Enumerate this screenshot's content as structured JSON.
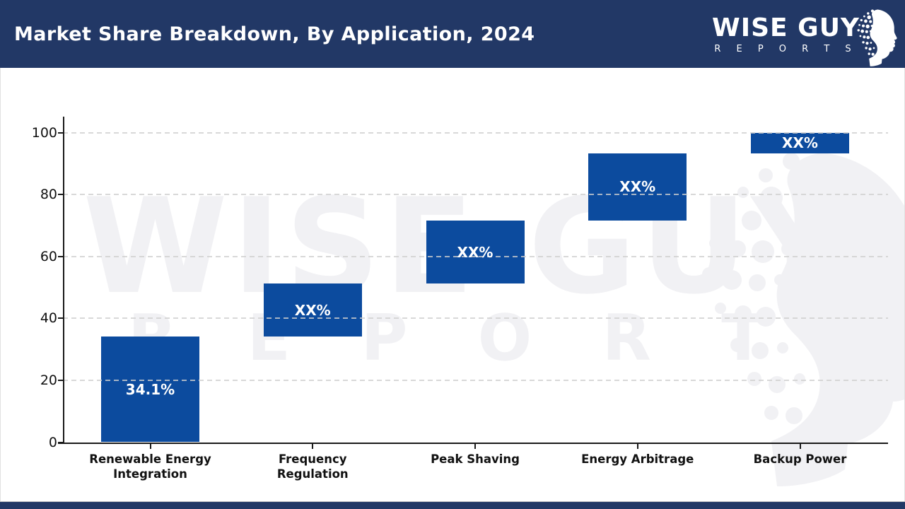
{
  "header": {
    "title": "Market Share Breakdown, By Application, 2024",
    "logo": {
      "name": "WISE GUY",
      "sub": "R E P O R T S"
    }
  },
  "watermark": {
    "line1": "WISE GUY",
    "line2": "R E P O R T S"
  },
  "colors": {
    "header_bg": "#223866",
    "footer_bg": "#223866",
    "bar": "#0c4b9e",
    "axis": "#1a1a1a",
    "gridline": "#cfcfcf",
    "tick_label": "#111111",
    "bar_label": "#ffffff",
    "watermark": "#f1f1f4"
  },
  "chart_data": {
    "type": "waterfall",
    "title": "Market Share Breakdown, By Application, 2024",
    "xlabel": "",
    "ylabel": "",
    "ylim": [
      0,
      100
    ],
    "yticks": [
      0,
      20,
      40,
      60,
      80,
      100
    ],
    "grid": "horizontal-dashed",
    "legend": "none",
    "categories": [
      "Renewable Energy Integration",
      "Frequency Regulation",
      "Peak Shaving",
      "Energy Arbitrage",
      "Backup Power"
    ],
    "category_label_lines": [
      [
        "Renewable Energy",
        "Integration"
      ],
      [
        "Frequency",
        "Regulation"
      ],
      [
        "Peak Shaving"
      ],
      [
        "Energy Arbitrage"
      ],
      [
        "Backup Power"
      ]
    ],
    "segments": [
      {
        "category": "Renewable Energy Integration",
        "start": 0,
        "end": 34.1,
        "label": "34.1%"
      },
      {
        "category": "Frequency Regulation",
        "start": 34.1,
        "end": 51.2,
        "label": "XX%"
      },
      {
        "category": "Peak Shaving",
        "start": 51.2,
        "end": 71.6,
        "label": "XX%"
      },
      {
        "category": "Energy Arbitrage",
        "start": 71.6,
        "end": 93.3,
        "label": "XX%"
      },
      {
        "category": "Backup Power",
        "start": 93.3,
        "end": 99.9,
        "label": "XX%"
      }
    ]
  }
}
